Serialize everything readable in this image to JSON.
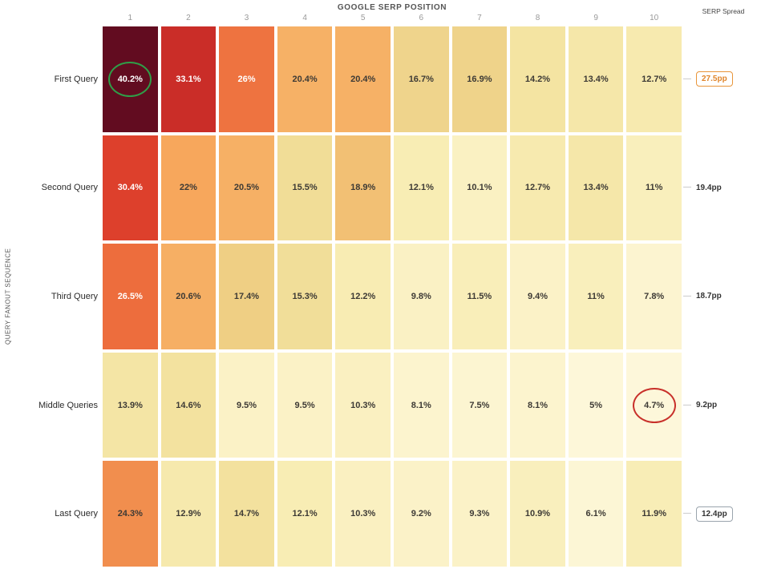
{
  "chart_data": {
    "type": "heatmap",
    "title": "GOOGLE SERP POSITION",
    "ylabel": "QUERY FANOUT SEQUENCE",
    "spread_header": "SERP Spread",
    "x_labels": [
      "1",
      "2",
      "3",
      "4",
      "5",
      "6",
      "7",
      "8",
      "9",
      "10"
    ],
    "rows": [
      {
        "label": "First Query",
        "values": [
          40.2,
          33.1,
          26,
          20.4,
          20.4,
          16.7,
          16.9,
          14.2,
          13.4,
          12.7
        ],
        "display": [
          "40.2%",
          "33.1%",
          "26%",
          "20.4%",
          "20.4%",
          "16.7%",
          "16.9%",
          "14.2%",
          "13.4%",
          "12.7%"
        ],
        "spread": "27.5pp",
        "spread_style": "orange-box"
      },
      {
        "label": "Second Query",
        "values": [
          30.4,
          22,
          20.5,
          15.5,
          18.9,
          12.1,
          10.1,
          12.7,
          13.4,
          11
        ],
        "display": [
          "30.4%",
          "22%",
          "20.5%",
          "15.5%",
          "18.9%",
          "12.1%",
          "10.1%",
          "12.7%",
          "13.4%",
          "11%"
        ],
        "spread": "19.4pp",
        "spread_style": "plain"
      },
      {
        "label": "Third Query",
        "values": [
          26.5,
          20.6,
          17.4,
          15.3,
          12.2,
          9.8,
          11.5,
          9.4,
          11,
          7.8
        ],
        "display": [
          "26.5%",
          "20.6%",
          "17.4%",
          "15.3%",
          "12.2%",
          "9.8%",
          "11.5%",
          "9.4%",
          "11%",
          "7.8%"
        ],
        "spread": "18.7pp",
        "spread_style": "plain"
      },
      {
        "label": "Middle Queries",
        "values": [
          13.9,
          14.6,
          9.5,
          9.5,
          10.3,
          8.1,
          7.5,
          8.1,
          5,
          4.7
        ],
        "display": [
          "13.9%",
          "14.6%",
          "9.5%",
          "9.5%",
          "10.3%",
          "8.1%",
          "7.5%",
          "8.1%",
          "5%",
          "4.7%"
        ],
        "spread": "9.2pp",
        "spread_style": "plain"
      },
      {
        "label": "Last Query",
        "values": [
          24.3,
          12.9,
          14.7,
          12.1,
          10.3,
          9.2,
          9.3,
          10.9,
          6.1,
          11.9
        ],
        "display": [
          "24.3%",
          "12.9%",
          "14.7%",
          "12.1%",
          "10.3%",
          "9.2%",
          "9.3%",
          "10.9%",
          "6.1%",
          "11.9%"
        ],
        "spread": "12.4pp",
        "spread_style": "gray-box"
      }
    ],
    "annotations": [
      {
        "row": 0,
        "col": 0,
        "shape": "ellipse-outline",
        "color": "#2f9e48"
      },
      {
        "row": 3,
        "col": 9,
        "shape": "ellipse-outline",
        "color": "#c8302a"
      }
    ],
    "colors": {
      "spread_accent": "#e0862c",
      "spread_box_gray": "#9aa4ad",
      "axis_text": "#999999",
      "label_text": "#2b2b2b",
      "cell_text_dark": "#3d3a35",
      "cell_text_light": "#ffffff"
    },
    "colorscale": [
      [
        4,
        "#fdf8dc"
      ],
      [
        8,
        "#fcf4cf"
      ],
      [
        10,
        "#faf1c3"
      ],
      [
        12,
        "#f8edb5"
      ],
      [
        14,
        "#f4e5a4"
      ],
      [
        16,
        "#f0da93"
      ],
      [
        18,
        "#eeca7e"
      ],
      [
        20,
        "#f6b368"
      ],
      [
        22,
        "#f7a75c"
      ],
      [
        24,
        "#f29350"
      ],
      [
        26,
        "#ee7340"
      ],
      [
        28,
        "#e95a35"
      ],
      [
        31,
        "#da3a2a"
      ],
      [
        34,
        "#c32727"
      ],
      [
        37,
        "#911c24"
      ],
      [
        40.5,
        "#5e0b20"
      ]
    ],
    "white_text_threshold": 25.5,
    "xlabel": "GOOGLE SERP POSITION",
    "grid": false,
    "legend": "none"
  }
}
